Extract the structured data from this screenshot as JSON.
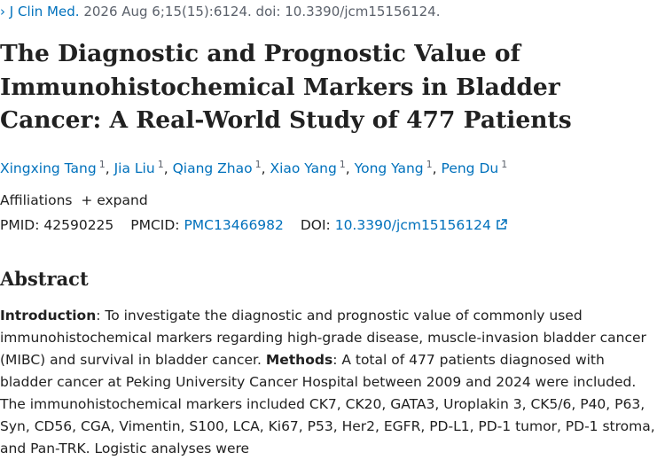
{
  "citation": {
    "journal": "J Clin Med.",
    "details": "2026 Aug 6;15(15):6124. doi: 10.3390/jcm15156124."
  },
  "title": "The Diagnostic and Prognostic Value of Immunohistochemical Markers in Bladder Cancer: A Real-World Study of 477 Patients",
  "authors": [
    {
      "name": "Xingxing Tang",
      "affiliation": "1"
    },
    {
      "name": "Jia Liu",
      "affiliation": "1"
    },
    {
      "name": "Qiang Zhao",
      "affiliation": "1"
    },
    {
      "name": "Xiao Yang",
      "affiliation": "1"
    },
    {
      "name": "Yong Yang",
      "affiliation": "1"
    },
    {
      "name": "Peng Du",
      "affiliation": "1"
    }
  ],
  "author_separator": ",",
  "affiliations": {
    "label": "Affiliations",
    "toggle": "expand"
  },
  "identifiers": {
    "pmid": {
      "label": "PMID:",
      "value": "42590225"
    },
    "pmcid": {
      "label": "PMCID:",
      "value": "PMC13466982"
    },
    "doi": {
      "label": "DOI:",
      "value": "10.3390/jcm15156124"
    }
  },
  "abstract": {
    "heading": "Abstract",
    "sections": [
      {
        "label": "Introduction",
        "text": ": To investigate the diagnostic and prognostic value of commonly used immunohistochemical markers regarding high-grade disease, muscle-invasion bladder cancer (MIBC) and survival in bladder cancer."
      },
      {
        "label": "Methods",
        "text": ": A total of 477 patients diagnosed with bladder cancer at Peking University Cancer Hospital between 2009 and 2024 were included. The immunohistochemical markers included CK7, CK20, GATA3, Uroplakin 3, CK5/6, P40, P63, Syn, CD56, CGA, Vimentin, S100, LCA, Ki67, P53, Her2, EGFR, PD-L1, PD-1 tumor, PD-1 stroma, and Pan-TRK. Logistic analyses were"
      }
    ]
  }
}
